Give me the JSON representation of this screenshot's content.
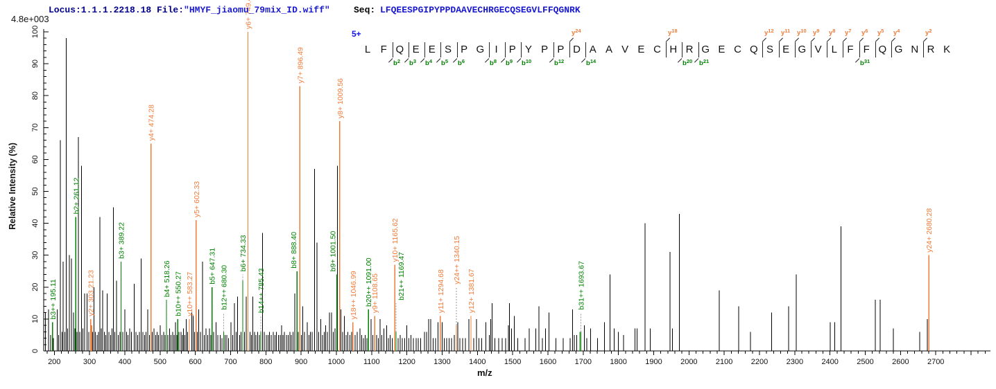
{
  "header": {
    "locus_file_prefix": "Locus:1.1.1.2218.18 File:",
    "file_name": "\"HMYF_jiaomu_79mix_ID.wiff\"",
    "seq_label": "Seq:",
    "sequence": "LFQEESPGIPYPPDAAVECHRGECQSEGVLFFQGNRK"
  },
  "sequence_annotation": {
    "charge": "5+",
    "residues": "LFQEESPGIPYPPDAAVECHRGECQSEGVLFFQGNRK",
    "b_ions": [
      2,
      3,
      4,
      5,
      6,
      8,
      9,
      10,
      12,
      14,
      20,
      21,
      31
    ],
    "y_ions": [
      24,
      18,
      12,
      11,
      10,
      9,
      8,
      7,
      6,
      5,
      4,
      2
    ]
  },
  "chart_data": {
    "type": "bar",
    "subtype": "mass-spectrum",
    "title": "",
    "xlabel": "m/z",
    "ylabel": "Relative  Intensity (%)",
    "base_peak_intensity": "4.8e+003",
    "x_range": [
      170,
      2855
    ],
    "ylim": [
      0,
      100
    ],
    "x_ticks": {
      "label_min": 200,
      "label_max": 2700,
      "step": 100,
      "minor_step": 20
    },
    "y_ticks": {
      "min": 0,
      "max": 100,
      "step": 10,
      "minor_step": 2
    },
    "grid": false,
    "colors": {
      "b_ion": "#008000",
      "y_ion": "#f07c3a",
      "peak": "#000000",
      "leader": "#999999"
    },
    "annotated_peaks": [
      {
        "label": "b3++ 195.11",
        "mz": 195.11,
        "ion": "b",
        "intensity": 9
      },
      {
        "label": "b2+ 261.12",
        "mz": 261.12,
        "ion": "b",
        "intensity": 42
      },
      {
        "label": "y2+ 303.21.23",
        "mz": 303.21,
        "ion": "y",
        "intensity": 10
      },
      {
        "label": "",
        "mz": 306.2,
        "ion": "y",
        "intensity": 8
      },
      {
        "label": "b3+ 389.22",
        "mz": 389.22,
        "ion": "b",
        "intensity": 28
      },
      {
        "label": "y4+ 474.28",
        "mz": 474.28,
        "ion": "y",
        "intensity": 65
      },
      {
        "label": "b4+ 518.26",
        "mz": 518.26,
        "ion": "b",
        "intensity": 16
      },
      {
        "label": "b10++ 550.27",
        "mz": 550.27,
        "ion": "b",
        "intensity": 10
      },
      {
        "label": "y10++ 583.27",
        "mz": 583.27,
        "ion": "y",
        "intensity": 10
      },
      {
        "label": "y5+ 602.33",
        "mz": 602.33,
        "ion": "y",
        "intensity": 41
      },
      {
        "label": "b5+ 647.31",
        "mz": 647.31,
        "ion": "b",
        "intensity": 20
      },
      {
        "label": "b12++ 680.30",
        "mz": 680.3,
        "ion": "b",
        "intensity": 6,
        "lh": 12
      },
      {
        "label": "b6+ 734.33",
        "mz": 734.33,
        "ion": "b",
        "intensity": 22,
        "lh": 24
      },
      {
        "label": "y6+ 749.40",
        "mz": 749.4,
        "ion": "y",
        "intensity": 100
      },
      {
        "label": "b14++ 785.43",
        "mz": 785.43,
        "ion": "b",
        "intensity": 6,
        "lh": 11
      },
      {
        "label": "b8+ 888.40",
        "mz": 888.4,
        "ion": "b",
        "intensity": 25,
        "lx": -5
      },
      {
        "label": "y7+ 896.49",
        "mz": 896.49,
        "ion": "y",
        "intensity": 83
      },
      {
        "label": "b9+ 1001.50",
        "mz": 1001.5,
        "ion": "b",
        "intensity": 24,
        "lx": -6
      },
      {
        "label": "y8+ 1009.56",
        "mz": 1009.56,
        "ion": "y",
        "intensity": 72
      },
      {
        "label": "y18++ 1046.99",
        "mz": 1046.99,
        "ion": "y",
        "intensity": 9
      },
      {
        "label": "b20++ 1091.00",
        "mz": 1091.0,
        "ion": "b",
        "intensity": 13
      },
      {
        "label": "y9+ 1108.65",
        "mz": 1108.65,
        "ion": "y",
        "intensity": 11
      },
      {
        "label": "y10+ 1165.62",
        "mz": 1165.62,
        "ion": "y",
        "intensity": 27
      },
      {
        "label": "b21++ 1169.47",
        "mz": 1169.47,
        "ion": "b",
        "intensity": 6,
        "lh": 15,
        "lx": 7
      },
      {
        "label": "y11+ 1294.68",
        "mz": 1294.68,
        "ion": "y",
        "intensity": 11
      },
      {
        "label": "y24++ 1340.15",
        "mz": 1340.15,
        "ion": "y",
        "intensity": 8,
        "lh": 20
      },
      {
        "label": "y12+ 1381.67",
        "mz": 1381.67,
        "ion": "y",
        "intensity": 11
      },
      {
        "label": "",
        "mz": 1690.5,
        "ion": "b",
        "intensity": 6
      },
      {
        "label": "b31++ 1693.67",
        "mz": 1693.67,
        "ion": "b",
        "intensity": 6,
        "lh": 12
      },
      {
        "label": "y24+ 2680.28",
        "mz": 2680.28,
        "ion": "y",
        "intensity": 30
      }
    ],
    "unlabeled_peaks": [
      [
        175,
        12
      ],
      [
        184,
        13
      ],
      [
        190,
        5
      ],
      [
        198,
        4
      ],
      [
        208,
        13
      ],
      [
        212,
        5
      ],
      [
        217,
        66
      ],
      [
        222,
        6
      ],
      [
        225,
        28
      ],
      [
        230,
        6
      ],
      [
        234,
        98
      ],
      [
        238,
        7
      ],
      [
        243,
        30
      ],
      [
        249,
        29
      ],
      [
        255,
        12
      ],
      [
        259,
        7
      ],
      [
        264,
        6
      ],
      [
        268,
        67
      ],
      [
        272,
        6
      ],
      [
        277,
        58
      ],
      [
        281,
        7
      ],
      [
        286,
        18
      ],
      [
        293,
        18
      ],
      [
        298,
        6
      ],
      [
        309,
        6
      ],
      [
        313,
        20
      ],
      [
        317,
        6
      ],
      [
        321,
        5
      ],
      [
        325,
        6
      ],
      [
        329,
        42
      ],
      [
        333,
        7
      ],
      [
        337,
        19
      ],
      [
        342,
        6
      ],
      [
        346,
        5
      ],
      [
        350,
        18
      ],
      [
        355,
        6
      ],
      [
        360,
        5
      ],
      [
        364,
        7
      ],
      [
        368,
        45
      ],
      [
        372,
        6
      ],
      [
        377,
        22
      ],
      [
        381,
        5
      ],
      [
        386,
        6
      ],
      [
        394,
        6
      ],
      [
        400,
        13
      ],
      [
        405,
        6
      ],
      [
        409,
        5
      ],
      [
        414,
        7
      ],
      [
        419,
        6
      ],
      [
        427,
        21
      ],
      [
        432,
        6
      ],
      [
        437,
        5
      ],
      [
        441,
        6
      ],
      [
        446,
        29
      ],
      [
        451,
        6
      ],
      [
        456,
        5
      ],
      [
        460,
        6
      ],
      [
        465,
        13
      ],
      [
        470,
        5
      ],
      [
        478,
        6
      ],
      [
        483,
        7
      ],
      [
        488,
        5
      ],
      [
        492,
        6
      ],
      [
        496,
        5
      ],
      [
        500,
        8
      ],
      [
        505,
        5
      ],
      [
        510,
        6
      ],
      [
        514,
        5
      ],
      [
        522,
        5
      ],
      [
        527,
        7
      ],
      [
        531,
        5
      ],
      [
        536,
        6
      ],
      [
        540,
        5
      ],
      [
        544,
        9
      ],
      [
        548,
        5
      ],
      [
        554,
        6
      ],
      [
        559,
        6
      ],
      [
        563,
        5
      ],
      [
        566,
        7
      ],
      [
        570,
        5
      ],
      [
        574,
        10
      ],
      [
        578,
        6
      ],
      [
        590,
        12
      ],
      [
        594,
        11
      ],
      [
        598,
        6
      ],
      [
        606,
        6
      ],
      [
        610,
        13
      ],
      [
        615,
        6
      ],
      [
        620,
        28
      ],
      [
        625,
        5
      ],
      [
        630,
        7
      ],
      [
        635,
        5
      ],
      [
        640,
        7
      ],
      [
        644,
        5
      ],
      [
        652,
        6
      ],
      [
        659,
        9
      ],
      [
        664,
        5
      ],
      [
        671,
        5
      ],
      [
        676,
        4
      ],
      [
        684,
        5
      ],
      [
        689,
        5
      ],
      [
        694,
        4
      ],
      [
        701,
        9
      ],
      [
        706,
        5
      ],
      [
        711,
        15
      ],
      [
        716,
        6
      ],
      [
        720,
        17
      ],
      [
        726,
        5
      ],
      [
        730,
        6
      ],
      [
        739,
        6
      ],
      [
        744,
        17
      ],
      [
        755,
        6
      ],
      [
        759,
        5
      ],
      [
        763,
        17
      ],
      [
        768,
        6
      ],
      [
        772,
        5
      ],
      [
        777,
        6
      ],
      [
        782,
        5
      ],
      [
        791,
        37
      ],
      [
        796,
        6
      ],
      [
        801,
        5
      ],
      [
        806,
        5
      ],
      [
        810,
        6
      ],
      [
        815,
        5
      ],
      [
        821,
        6
      ],
      [
        826,
        5
      ],
      [
        830,
        6
      ],
      [
        836,
        5
      ],
      [
        841,
        5
      ],
      [
        845,
        8
      ],
      [
        849,
        5
      ],
      [
        853,
        6
      ],
      [
        858,
        5
      ],
      [
        863,
        5
      ],
      [
        868,
        6
      ],
      [
        872,
        5
      ],
      [
        877,
        6
      ],
      [
        882,
        18
      ],
      [
        892,
        6
      ],
      [
        901,
        5
      ],
      [
        905,
        14
      ],
      [
        910,
        6
      ],
      [
        917,
        9
      ],
      [
        922,
        5
      ],
      [
        926,
        6
      ],
      [
        931,
        6
      ],
      [
        938,
        57
      ],
      [
        945,
        34
      ],
      [
        950,
        6
      ],
      [
        956,
        10
      ],
      [
        961,
        5
      ],
      [
        966,
        6
      ],
      [
        970,
        8
      ],
      [
        975,
        6
      ],
      [
        980,
        12
      ],
      [
        986,
        12
      ],
      [
        991,
        6
      ],
      [
        996,
        7
      ],
      [
        1003,
        58
      ],
      [
        1013,
        13
      ],
      [
        1018,
        6
      ],
      [
        1023,
        11
      ],
      [
        1028,
        5
      ],
      [
        1033,
        6
      ],
      [
        1038,
        5
      ],
      [
        1043,
        6
      ],
      [
        1053,
        5
      ],
      [
        1059,
        6
      ],
      [
        1067,
        7
      ],
      [
        1072,
        5
      ],
      [
        1077,
        4
      ],
      [
        1082,
        5
      ],
      [
        1087,
        4
      ],
      [
        1098,
        10
      ],
      [
        1103,
        5
      ],
      [
        1114,
        5
      ],
      [
        1119,
        4
      ],
      [
        1124,
        10
      ],
      [
        1129,
        5
      ],
      [
        1135,
        7
      ],
      [
        1143,
        8
      ],
      [
        1148,
        4
      ],
      [
        1153,
        5
      ],
      [
        1158,
        4
      ],
      [
        1175,
        4
      ],
      [
        1181,
        5
      ],
      [
        1187,
        4
      ],
      [
        1194,
        4
      ],
      [
        1200,
        8
      ],
      [
        1206,
        4
      ],
      [
        1212,
        5
      ],
      [
        1218,
        4
      ],
      [
        1226,
        4
      ],
      [
        1232,
        4
      ],
      [
        1239,
        4
      ],
      [
        1250,
        6
      ],
      [
        1256,
        6
      ],
      [
        1262,
        10
      ],
      [
        1268,
        10
      ],
      [
        1274,
        4
      ],
      [
        1281,
        4
      ],
      [
        1288,
        9
      ],
      [
        1300,
        9
      ],
      [
        1306,
        4
      ],
      [
        1313,
        4
      ],
      [
        1320,
        4
      ],
      [
        1327,
        4
      ],
      [
        1334,
        5
      ],
      [
        1344,
        9
      ],
      [
        1350,
        4
      ],
      [
        1358,
        4
      ],
      [
        1366,
        4
      ],
      [
        1376,
        10
      ],
      [
        1390,
        4
      ],
      [
        1397,
        10
      ],
      [
        1404,
        4
      ],
      [
        1412,
        4
      ],
      [
        1424,
        9
      ],
      [
        1434,
        5
      ],
      [
        1438,
        10
      ],
      [
        1442,
        15
      ],
      [
        1450,
        4
      ],
      [
        1460,
        4
      ],
      [
        1470,
        4
      ],
      [
        1480,
        4
      ],
      [
        1488,
        8
      ],
      [
        1491,
        15
      ],
      [
        1497,
        7
      ],
      [
        1505,
        11
      ],
      [
        1514,
        4
      ],
      [
        1535,
        4
      ],
      [
        1547,
        7
      ],
      [
        1566,
        7
      ],
      [
        1574,
        14
      ],
      [
        1584,
        4
      ],
      [
        1593,
        7
      ],
      [
        1603,
        12
      ],
      [
        1623,
        4
      ],
      [
        1643,
        4
      ],
      [
        1663,
        4
      ],
      [
        1670,
        13
      ],
      [
        1675,
        5
      ],
      [
        1682,
        5
      ],
      [
        1703,
        8
      ],
      [
        1710,
        4
      ],
      [
        1721,
        7
      ],
      [
        1741,
        4
      ],
      [
        1760,
        9
      ],
      [
        1776,
        24
      ],
      [
        1788,
        7
      ],
      [
        1800,
        6
      ],
      [
        1814,
        5
      ],
      [
        1847,
        7
      ],
      [
        1853,
        7
      ],
      [
        1875,
        40
      ],
      [
        1890,
        7
      ],
      [
        1946,
        31
      ],
      [
        1953,
        7
      ],
      [
        1973,
        43
      ],
      [
        2086,
        19
      ],
      [
        2141,
        14
      ],
      [
        2174,
        6
      ],
      [
        2234,
        12
      ],
      [
        2283,
        14
      ],
      [
        2304,
        24
      ],
      [
        2401,
        9
      ],
      [
        2413,
        9
      ],
      [
        2431,
        39
      ],
      [
        2528,
        16
      ],
      [
        2542,
        16
      ],
      [
        2580,
        7
      ],
      [
        2654,
        6
      ],
      [
        2676,
        10
      ]
    ]
  }
}
